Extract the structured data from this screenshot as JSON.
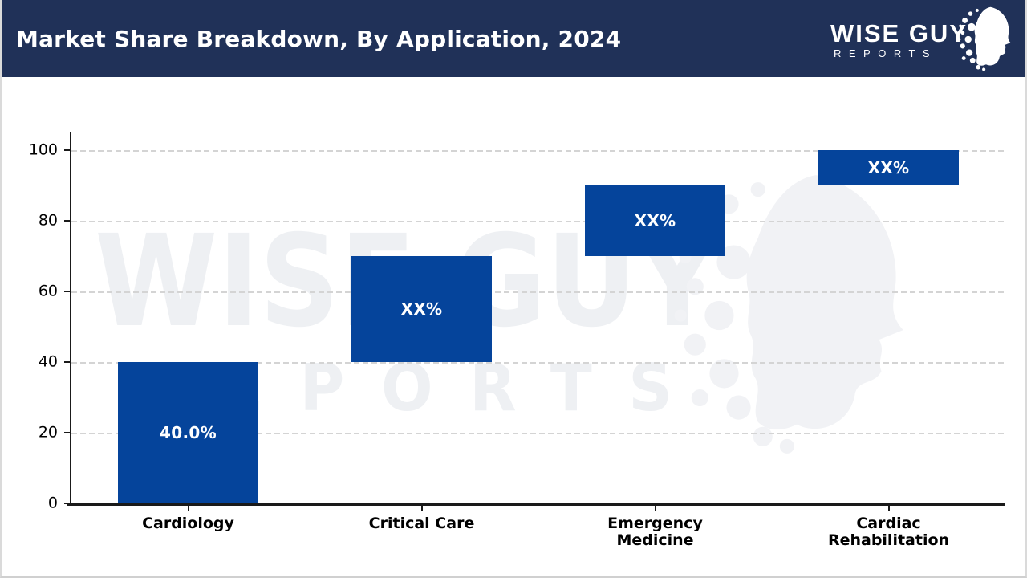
{
  "header": {
    "title": "Market Share Breakdown, By Application, 2024",
    "background_color": "#203158",
    "logo": {
      "line1": "WISE GUY",
      "line2": "REPORTS"
    }
  },
  "watermark": {
    "line1": "WISE GUY",
    "line2": "REPORTS"
  },
  "chart_data": {
    "type": "bar",
    "variant": "floating-segment (stacked market-share breakdown)",
    "title": "Market Share Breakdown, By Application, 2024",
    "categories": [
      "Cardiology",
      "Critical Care",
      "Emergency Medicine",
      "Cardiac Rehabilitation"
    ],
    "bars": [
      {
        "category": "Cardiology",
        "start": 0,
        "end": 40,
        "label": "40.0%"
      },
      {
        "category": "Critical Care",
        "start": 40,
        "end": 70,
        "label": "XX%"
      },
      {
        "category": "Emergency Medicine",
        "start": 70,
        "end": 90,
        "label": "XX%"
      },
      {
        "category": "Cardiac Rehabilitation",
        "start": 90,
        "end": 100,
        "label": "XX%"
      }
    ],
    "yticks": [
      0,
      20,
      40,
      60,
      80,
      100
    ],
    "ylim": [
      0,
      105
    ],
    "xlabel": "",
    "ylabel": "",
    "legend": null,
    "grid": {
      "horizontal": true,
      "style": "dashed",
      "color": "#d4d4d4"
    },
    "bar_color": "#05449b",
    "bar_label_color": "#ffffff"
  }
}
